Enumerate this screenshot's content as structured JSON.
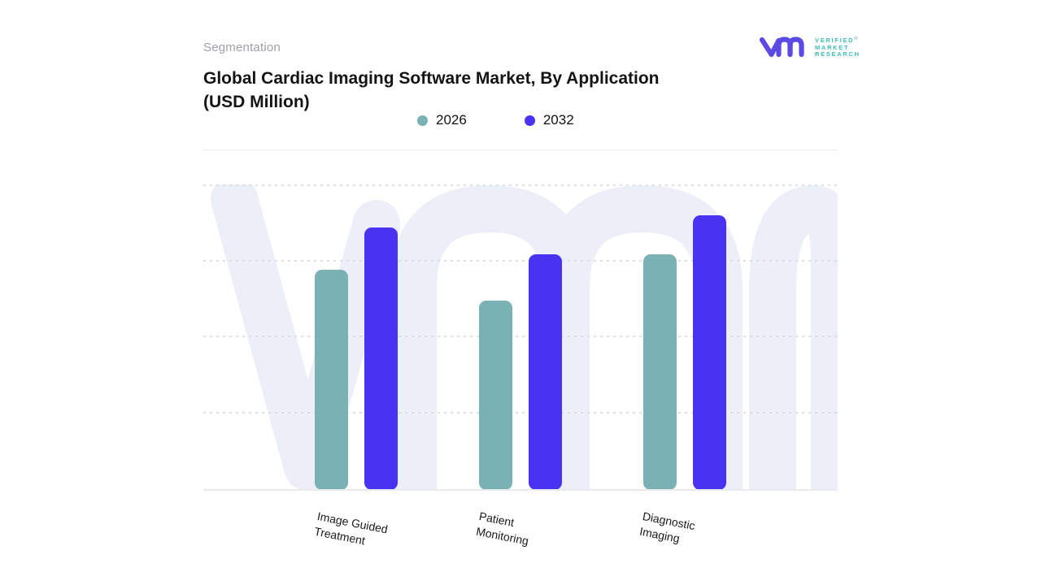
{
  "header": {
    "eyebrow": "Segmentation",
    "title_line1": "Global Cardiac Imaging Software Market, By Application",
    "title_line2": "(USD Million)"
  },
  "brand": {
    "name_lines": [
      "VERIFIED",
      "MARKET",
      "RESEARCH"
    ],
    "registered_mark": "®",
    "monogram_color": "#5b4ae4",
    "name_color": "#3fbcb4"
  },
  "colors": {
    "series_2026": "#7ab1b4",
    "series_2032": "#4733f1",
    "watermark": "#edeff8",
    "gridline": "#dadbde",
    "baseline": "#e9eaec"
  },
  "chart_data": {
    "type": "bar",
    "title": "Global Cardiac Imaging Software Market, By Application (USD Million)",
    "categories": [
      "Image Guided Treatment",
      "Patient Monitoring",
      "Diagnostic Imaging"
    ],
    "category_lines": [
      [
        "Image Guided",
        "Treatment"
      ],
      [
        "Patient",
        "Monitoring"
      ],
      [
        "Diagnostic",
        "Imaging"
      ]
    ],
    "series": [
      {
        "name": "2026",
        "color": "#7ab1b4",
        "values": [
          72,
          62,
          77
        ]
      },
      {
        "name": "2032",
        "color": "#4733f1",
        "values": [
          86,
          77,
          90
        ]
      }
    ],
    "xlabel": "",
    "ylabel": "",
    "ylim": [
      0,
      100
    ],
    "y_axis_tick_labels_visible": false,
    "note": "Y axis has no numeric labels in source; values are estimated relative units where one dashed gridline interval = 25",
    "gridlines": "horizontal-dashed",
    "legend_position": "top-center",
    "bar_corner_radius": 9
  }
}
